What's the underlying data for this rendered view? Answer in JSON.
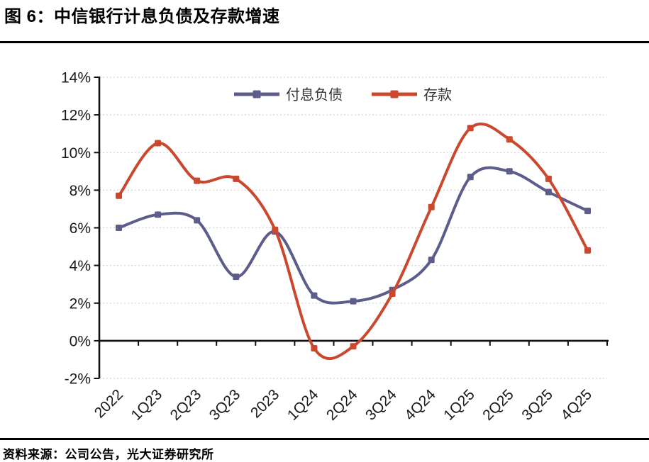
{
  "header": {
    "title": "图 6：中信银行计息负债及存款增速"
  },
  "chart_data": {
    "type": "line",
    "title": "",
    "categories": [
      "2022",
      "1Q23",
      "2Q23",
      "3Q23",
      "2023",
      "1Q24",
      "2Q24",
      "3Q24",
      "4Q24",
      "1Q25",
      "2Q25",
      "3Q25",
      "4Q25"
    ],
    "series": [
      {
        "name": "付息负债",
        "color": "#5d5d8b",
        "marker": "square",
        "values": [
          6.0,
          6.7,
          6.4,
          3.4,
          5.8,
          2.4,
          2.1,
          2.7,
          4.3,
          8.7,
          9.0,
          7.9,
          6.9
        ]
      },
      {
        "name": "存款",
        "color": "#c9482e",
        "marker": "square",
        "values": [
          7.7,
          10.5,
          8.5,
          8.6,
          5.9,
          -0.4,
          -0.3,
          2.5,
          7.1,
          11.3,
          10.7,
          8.6,
          4.8
        ]
      }
    ],
    "unit": "%",
    "ylim": [
      -2,
      14
    ],
    "y_ticks": [
      14,
      12,
      10,
      8,
      6,
      4,
      2,
      0,
      -2
    ],
    "y_tick_labels": [
      "14%",
      "12%",
      "10%",
      "8%",
      "6%",
      "4%",
      "2%",
      "0%",
      "-2%"
    ],
    "x_label_rotation": -45,
    "grid": "horizontal-dashed",
    "legend_position": "top-center",
    "smooth": true
  },
  "footer": {
    "source": "资料来源：公司公告，光大证券研究所"
  },
  "colors": {
    "axis": "#111111",
    "grid": "#d4d4d4",
    "tick_text": "#1a1a1a",
    "legend_text": "#333333",
    "background": "#ffffff"
  }
}
